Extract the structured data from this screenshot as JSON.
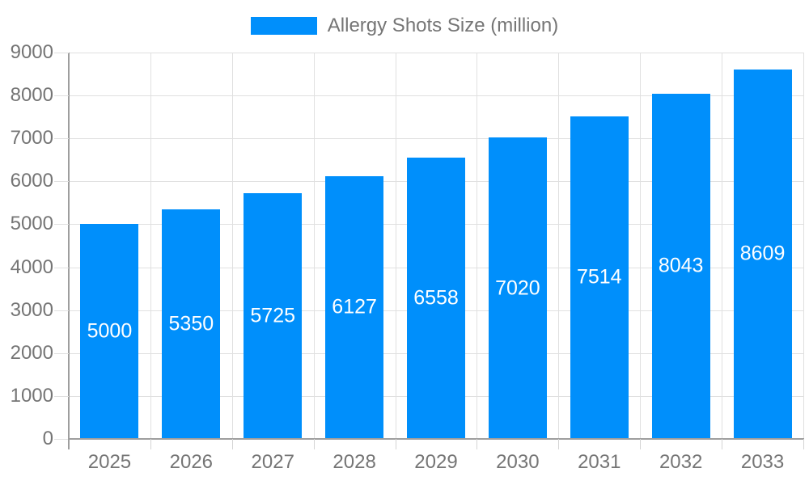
{
  "chart_data": {
    "type": "bar",
    "title": "Allergy Shots Size (million)",
    "categories": [
      "2025",
      "2026",
      "2027",
      "2028",
      "2029",
      "2030",
      "2031",
      "2032",
      "2033"
    ],
    "values": [
      5000,
      5350,
      5725,
      6127,
      6558,
      7020,
      7514,
      8043,
      8609
    ],
    "xlabel": "",
    "ylabel": "",
    "ylim": [
      0,
      9000
    ],
    "y_ticks": [
      0,
      1000,
      2000,
      3000,
      4000,
      5000,
      6000,
      7000,
      8000,
      9000
    ],
    "grid": true,
    "legend_position": "top",
    "bar_labels_inside": true,
    "colors": {
      "bar": "#008ffb",
      "bar_label": "#ffffff",
      "axis_text": "#757575",
      "gridline": "#e0e0e0",
      "axis_line": "#9e9e9e"
    }
  }
}
